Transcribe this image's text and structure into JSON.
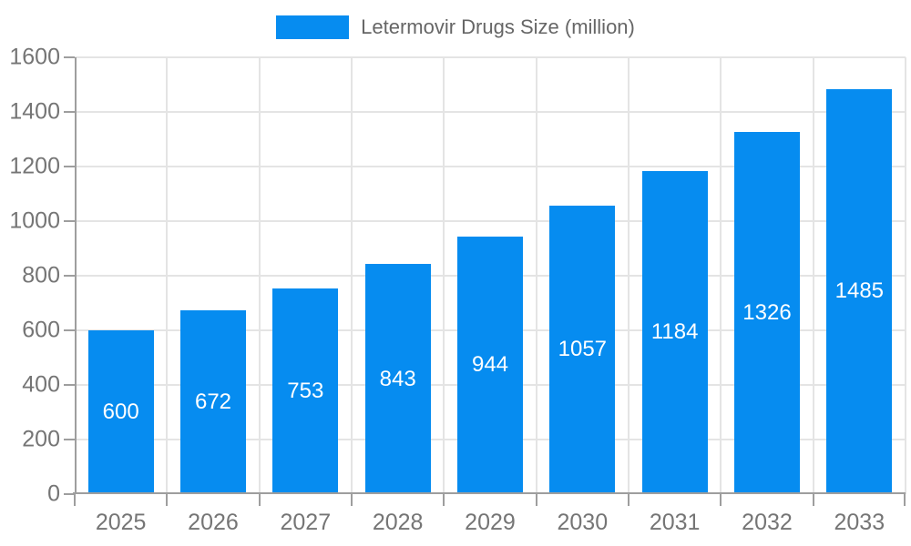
{
  "chart_data": {
    "type": "bar",
    "title": "Letermovir Drugs Size (million)",
    "categories": [
      "2025",
      "2026",
      "2027",
      "2028",
      "2029",
      "2030",
      "2031",
      "2032",
      "2033"
    ],
    "values": [
      600,
      672,
      753,
      843,
      944,
      1057,
      1184,
      1326,
      1485
    ],
    "xlabel": "",
    "ylabel": "",
    "ylim": [
      0,
      1600
    ],
    "ytick_step": 200,
    "yticks": [
      0,
      200,
      400,
      600,
      800,
      1000,
      1200,
      1400,
      1600
    ],
    "grid": true,
    "legend_position": "top",
    "value_labels_inside_bars": true
  },
  "colors": {
    "bar": "#068cf0",
    "axis": "#9e9e9e",
    "grid": "#e4e4e4",
    "tick_text": "#757575",
    "legend_text": "#666666",
    "value_text": "#ffffff"
  }
}
